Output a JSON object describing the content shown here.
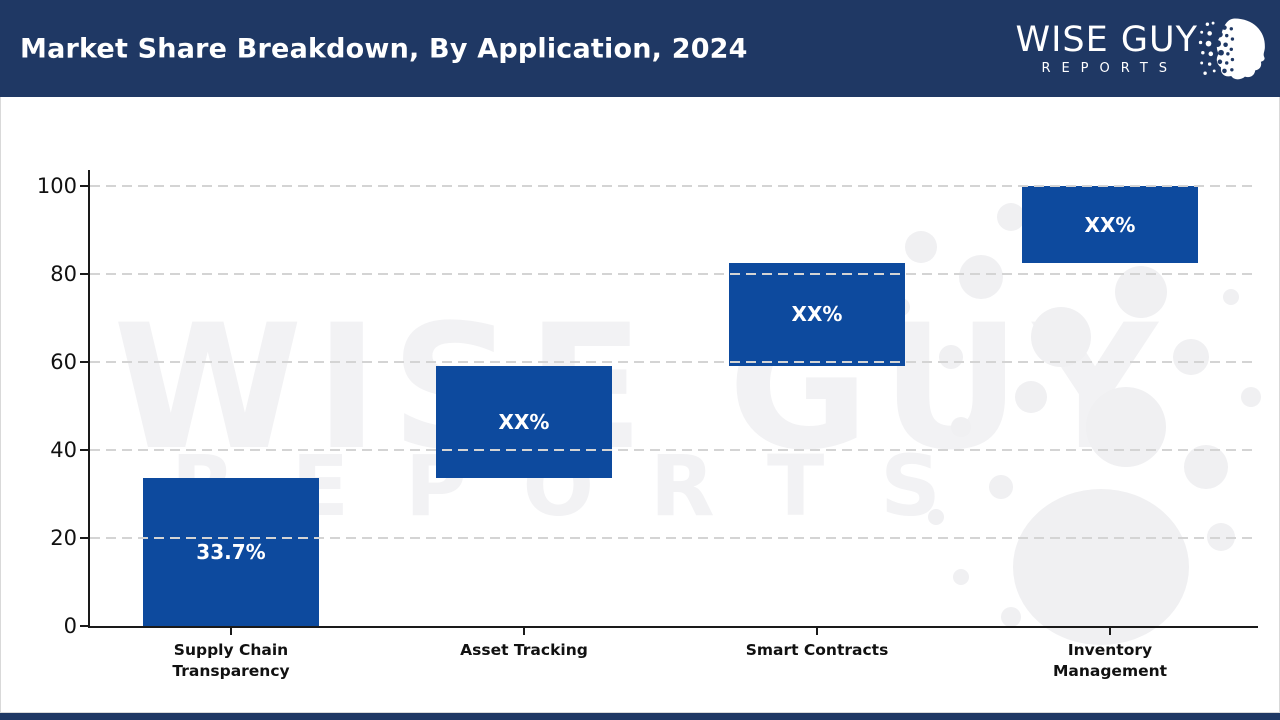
{
  "header": {
    "title": "Market Share Breakdown, By Application, 2024",
    "logo_line1": "WISE GUY",
    "logo_line2": "REPORTS"
  },
  "watermark": {
    "line1": "WISE GUY",
    "line2": "REPORTS"
  },
  "colors": {
    "header_bg": "#1f3864",
    "bar": "#0d4a9e",
    "grid": "#d4d4d4",
    "axis": "#1a1a1a",
    "value_label": "#ffffff"
  },
  "chart_data": {
    "type": "bar",
    "subtype": "floating stacked percentage cascade (segments sum to 100%)",
    "title": "Market Share Breakdown, By Application, 2024",
    "categories": [
      "Supply Chain Transparency",
      "Asset Tracking",
      "Smart Contracts",
      "Inventory Management"
    ],
    "category_lines": [
      [
        "Supply Chain",
        "Transparency"
      ],
      [
        "Asset Tracking"
      ],
      [
        "Smart Contracts"
      ],
      [
        "Inventory",
        "Management"
      ]
    ],
    "segments": [
      {
        "category": "Supply Chain Transparency",
        "start": 0,
        "end": 33.7,
        "label": "33.7%"
      },
      {
        "category": "Asset Tracking",
        "start": 33.7,
        "end": 59.1,
        "label": "XX%"
      },
      {
        "category": "Smart Contracts",
        "start": 59.1,
        "end": 82.5,
        "label": "XX%"
      },
      {
        "category": "Inventory Management",
        "start": 82.5,
        "end": 100,
        "label": "XX%"
      }
    ],
    "xlabel": "",
    "ylabel": "",
    "ylim": [
      0,
      100
    ],
    "yticks": [
      0,
      20,
      40,
      60,
      80,
      100
    ],
    "grid": "horizontal dashed light-gray, drawn over bars",
    "legend": "none"
  }
}
